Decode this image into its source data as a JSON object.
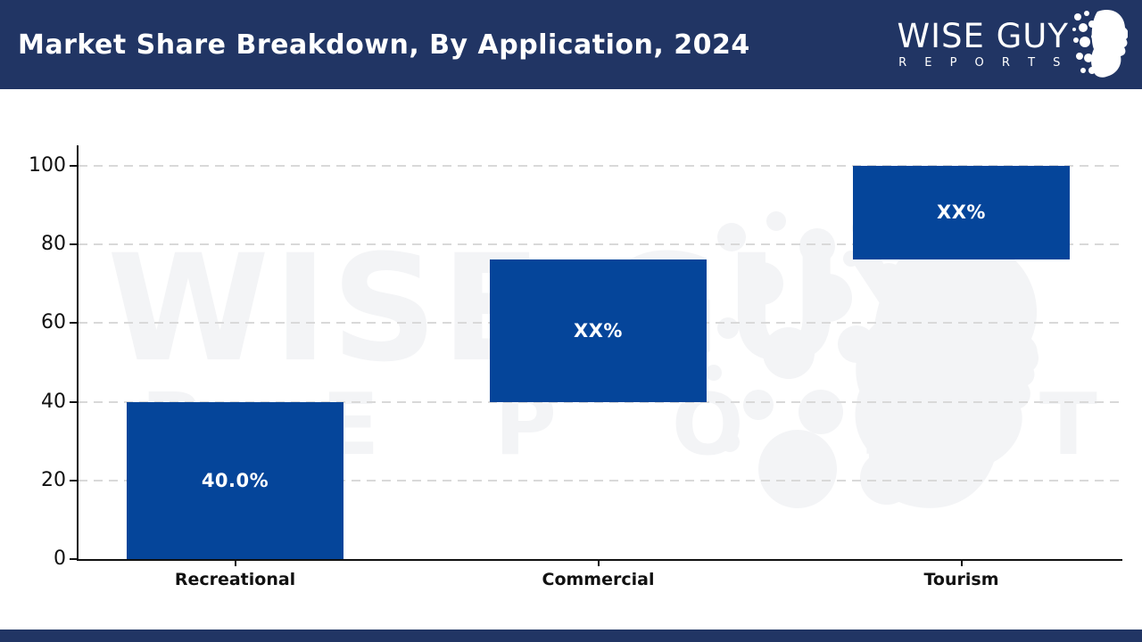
{
  "header": {
    "title": "Market Share Breakdown, By Application, 2024",
    "logo": {
      "wordmark": "WISE GUY",
      "subtext": "R E P O R T S"
    }
  },
  "watermark": {
    "wordmark": "WISE GUY",
    "subtext": "R E P O R T S"
  },
  "colors": {
    "header_bg": "#213564",
    "footer_bg": "#213564",
    "bar": "#05459a",
    "bar_label": "#ffffff",
    "gridline": "#d9d9d9",
    "axis": "#111111",
    "watermark": "#f3f4f6"
  },
  "chart_data": {
    "type": "bar",
    "subtype": "waterfall",
    "title": "Market Share Breakdown, By Application, 2024",
    "categories": [
      "Recreational",
      "Commercial",
      "Tourism"
    ],
    "segments": [
      {
        "category": "Recreational",
        "start": 0,
        "end": 40,
        "value": 40,
        "label": "40.0%"
      },
      {
        "category": "Commercial",
        "start": 40,
        "end": 76.2,
        "value": 36.2,
        "label": "XX%"
      },
      {
        "category": "Tourism",
        "start": 76.2,
        "end": 100,
        "value": 23.8,
        "label": "XX%"
      }
    ],
    "xlabel": "",
    "ylabel": "",
    "ylim": [
      0,
      100
    ],
    "yticks": [
      0,
      20,
      40,
      60,
      80,
      100
    ],
    "grid": "horizontal-dashed",
    "legend": null
  }
}
